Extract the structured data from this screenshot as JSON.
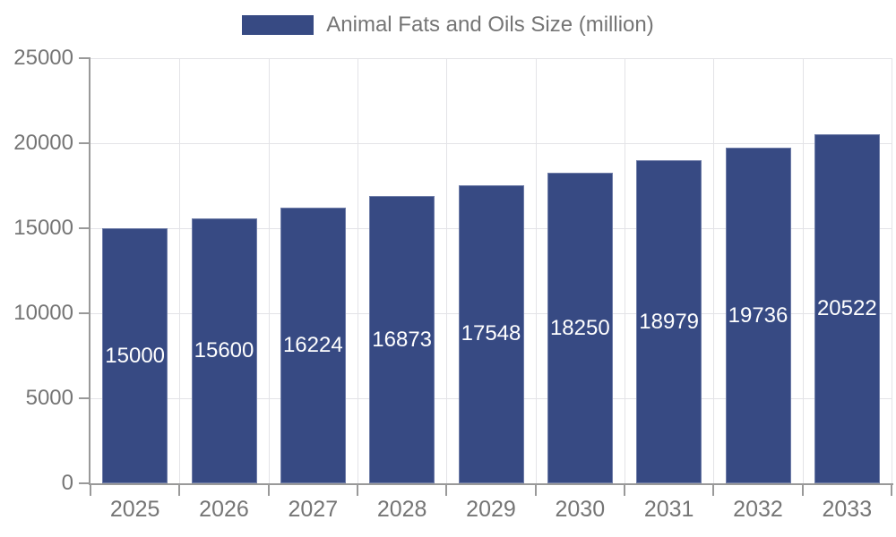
{
  "chart_data": {
    "type": "bar",
    "title": "",
    "series_name": "Animal Fats and Oils Size (million)",
    "categories": [
      "2025",
      "2026",
      "2027",
      "2028",
      "2029",
      "2030",
      "2031",
      "2032",
      "2033"
    ],
    "values": [
      15000,
      15600,
      16224,
      16873,
      17548,
      18250,
      18979,
      19736,
      20522
    ],
    "xlabel": "",
    "ylabel": "",
    "ylim": [
      0,
      25000
    ],
    "yticks": [
      0,
      5000,
      10000,
      15000,
      20000,
      25000
    ],
    "grid": true,
    "legend_position": "top-center",
    "colors": {
      "bar_fill": "#374A83",
      "bar_border": "#6F7DA8",
      "grid_line": "#E3E3E7",
      "axis_line": "#999999",
      "tick_text": "#757575",
      "bar_label_text": "#FFFFFF",
      "background": "#FFFFFF"
    }
  }
}
